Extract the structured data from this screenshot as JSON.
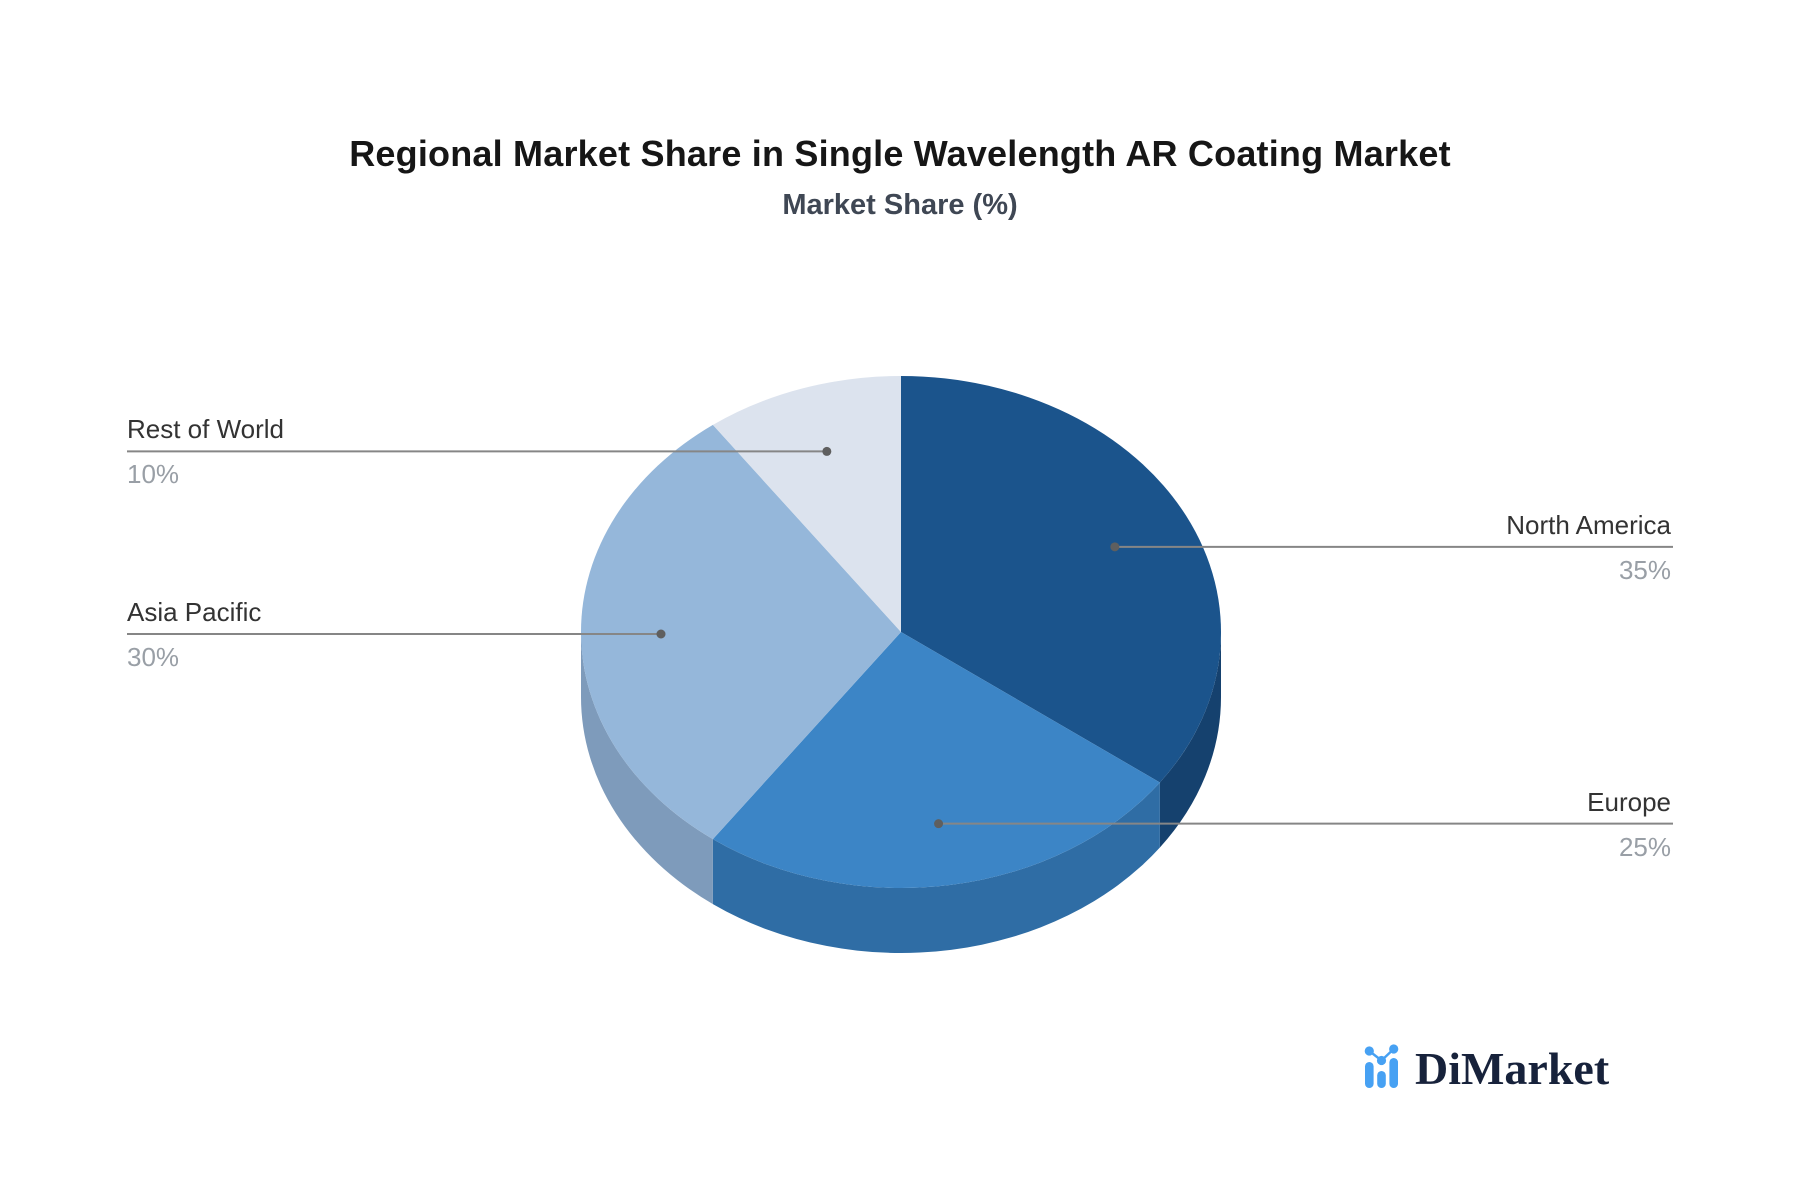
{
  "chart_data": {
    "type": "pie",
    "style": "3d",
    "title": "Regional Market Share in Single Wavelength AR Coating Market",
    "subtitle": "Market Share (%)",
    "categories": [
      "North America",
      "Europe",
      "Asia Pacific",
      "Rest of World"
    ],
    "values": [
      35,
      25,
      30,
      10
    ],
    "unit": "%",
    "value_labels": [
      "35%",
      "25%",
      "30%",
      "10%"
    ],
    "start_angle": 0,
    "direction": "clockwise",
    "legend": "none",
    "slice_colors": [
      "#1b548c",
      "#3c85c6",
      "#95b7da",
      "#dce3ee"
    ],
    "slice_depth_colors": [
      "#15416e",
      "#2f6da5",
      "#7e9bbb",
      "#b9c6d8"
    ],
    "connector_color": "#868686",
    "connector_dot_color": "#5f5f5f",
    "label_color": "#333333",
    "value_color": "#999fa6",
    "title_color": "#161616",
    "subtitle_color": "#3f4754"
  },
  "branding": {
    "logo_text": "DiMarket",
    "icon": "bar-chart-icon",
    "icon_color": "#47a1f3",
    "text_color": "#17223b"
  }
}
